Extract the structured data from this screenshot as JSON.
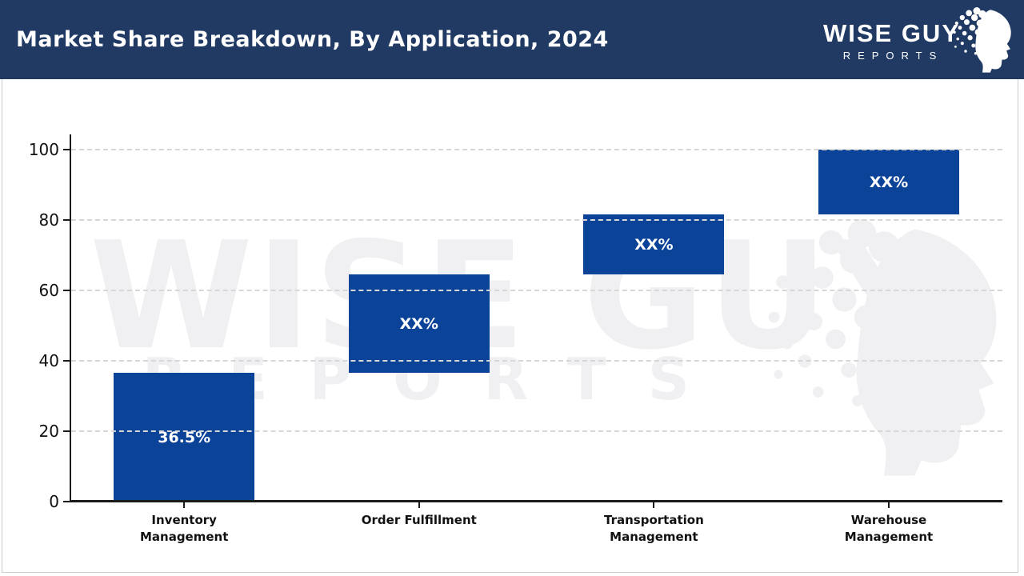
{
  "header": {
    "title": "Market Share Breakdown, By Application, 2024",
    "logo": {
      "line1": "WISE GUY",
      "line2": "REPORTS"
    }
  },
  "watermark": {
    "line1": "WISE GUY",
    "line2": "REPORTS"
  },
  "colors": {
    "header_bg": "#203a64",
    "bar_fill": "#0b4398",
    "bar_label_text": "#ffffff",
    "grid": "#d7d7d7",
    "axis": "#1a1a1a",
    "watermark": "#f0f0f2",
    "frame_border": "#cccccc"
  },
  "chart_data": {
    "type": "bar",
    "subtype": "waterfall",
    "title": "Market Share Breakdown, By Application, 2024",
    "xlabel": "",
    "ylabel": "",
    "categories": [
      "Inventory\nManagement",
      "Order Fulfillment",
      "Transportation\nManagement",
      "Warehouse\nManagement"
    ],
    "segments": [
      {
        "category": "Inventory Management",
        "start": 0,
        "end": 36.5,
        "value": 36.5,
        "label": "36.5%"
      },
      {
        "category": "Order Fulfillment",
        "start": 36.5,
        "end": 64.5,
        "value": 28,
        "label": "XX%"
      },
      {
        "category": "Transportation Management",
        "start": 64.5,
        "end": 81.5,
        "value": 17,
        "label": "XX%"
      },
      {
        "category": "Warehouse Management",
        "start": 81.5,
        "end": 100,
        "value": 18.5,
        "label": "XX%"
      }
    ],
    "yticks": [
      0,
      20,
      40,
      60,
      80,
      100
    ],
    "ylim": [
      0,
      104
    ],
    "grid": "horizontal-dashed",
    "legend": "none",
    "bar_color": "#0b4398"
  }
}
